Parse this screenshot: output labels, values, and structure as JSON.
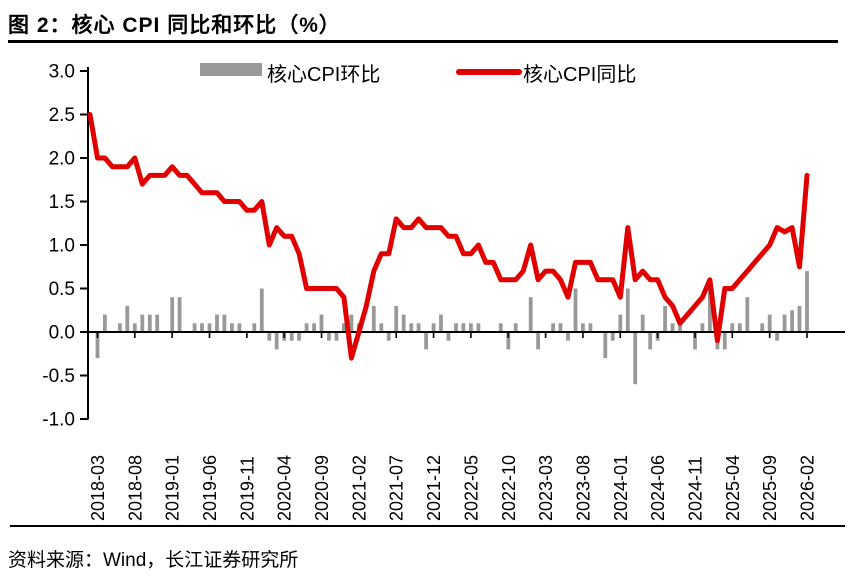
{
  "header": {
    "title": "图 2：核心 CPI 同比和环比（%）"
  },
  "legend": {
    "items": [
      {
        "label": "核心CPI环比",
        "type": "bar",
        "color": "#999999"
      },
      {
        "label": "核心CPI同比",
        "type": "line",
        "color": "#e00000"
      }
    ]
  },
  "footer": {
    "source": "资料来源：Wind，长江证券研究所"
  },
  "chart_data": {
    "type": "bar+line",
    "title": "核心 CPI 同比和环比（%）",
    "x_monthly_range": [
      "2018-02",
      "2026-02"
    ],
    "x_tick_labels": [
      "2018-03",
      "2018-08",
      "2019-01",
      "2019-06",
      "2019-11",
      "2020-04",
      "2020-09",
      "2021-02",
      "2021-07",
      "2021-12",
      "2022-05",
      "2022-10",
      "2023-03",
      "2023-08",
      "2024-01",
      "2024-06",
      "2024-11",
      "2025-04",
      "2025-09",
      "2026-02"
    ],
    "x_tick_every_n_months": 5,
    "x_first_tick_index": 1,
    "ylim": [
      -1.0,
      3.0
    ],
    "y_tick_labels": [
      "3.0",
      "2.5",
      "2.0",
      "1.5",
      "1.0",
      "0.5",
      "0.0",
      "-0.5",
      "-1.0"
    ],
    "y_ticks": [
      3.0,
      2.5,
      2.0,
      1.5,
      1.0,
      0.5,
      0.0,
      -0.5,
      -1.0
    ],
    "grid": false,
    "legend_position": "top",
    "series": [
      {
        "name": "核心CPI环比",
        "type": "bar",
        "color": "#999999",
        "values": [
          0.0,
          -0.3,
          0.2,
          0.0,
          0.1,
          0.3,
          0.1,
          0.2,
          0.2,
          0.2,
          0.0,
          0.4,
          0.4,
          0.0,
          0.1,
          0.1,
          0.1,
          0.2,
          0.2,
          0.1,
          0.1,
          0.0,
          0.1,
          0.5,
          -0.1,
          -0.2,
          -0.1,
          -0.1,
          -0.1,
          0.1,
          0.1,
          0.2,
          -0.1,
          -0.1,
          0.1,
          0.2,
          0.1,
          0.0,
          0.3,
          0.1,
          -0.1,
          0.3,
          0.2,
          0.1,
          0.1,
          -0.2,
          0.1,
          0.2,
          -0.1,
          0.1,
          0.1,
          0.1,
          0.1,
          0.0,
          0.0,
          0.1,
          -0.2,
          0.1,
          0.0,
          0.4,
          -0.2,
          0.0,
          0.1,
          0.1,
          -0.1,
          0.5,
          0.1,
          0.1,
          0.0,
          -0.3,
          -0.1,
          0.2,
          0.5,
          -0.6,
          0.2,
          -0.2,
          -0.1,
          0.3,
          0.1,
          0.1,
          0.0,
          -0.2,
          0.1,
          0.5,
          -0.2,
          -0.2,
          0.1,
          0.1,
          0.4,
          0.0,
          0.1,
          0.2,
          -0.1,
          0.2,
          0.25,
          0.3,
          0.7
        ]
      },
      {
        "name": "核心CPI同比",
        "type": "line",
        "color": "#e00000",
        "values": [
          2.5,
          2.0,
          2.0,
          1.9,
          1.9,
          1.9,
          2.0,
          1.7,
          1.8,
          1.8,
          1.8,
          1.9,
          1.8,
          1.8,
          1.7,
          1.6,
          1.6,
          1.6,
          1.5,
          1.5,
          1.5,
          1.4,
          1.4,
          1.5,
          1.0,
          1.2,
          1.1,
          1.1,
          0.9,
          0.5,
          0.5,
          0.5,
          0.5,
          0.5,
          0.4,
          -0.3,
          0.0,
          0.3,
          0.7,
          0.9,
          0.9,
          1.3,
          1.2,
          1.2,
          1.3,
          1.2,
          1.2,
          1.2,
          1.1,
          1.1,
          0.9,
          0.9,
          1.0,
          0.8,
          0.8,
          0.6,
          0.6,
          0.6,
          0.7,
          1.0,
          0.6,
          0.7,
          0.7,
          0.6,
          0.4,
          0.8,
          0.8,
          0.8,
          0.6,
          0.6,
          0.6,
          0.4,
          1.2,
          0.6,
          0.7,
          0.6,
          0.6,
          0.4,
          0.3,
          0.1,
          0.2,
          0.3,
          0.4,
          0.6,
          -0.1,
          0.5,
          0.5,
          0.6,
          0.7,
          0.8,
          0.9,
          1.0,
          1.2,
          1.15,
          1.2,
          0.75,
          1.8
        ]
      }
    ]
  }
}
